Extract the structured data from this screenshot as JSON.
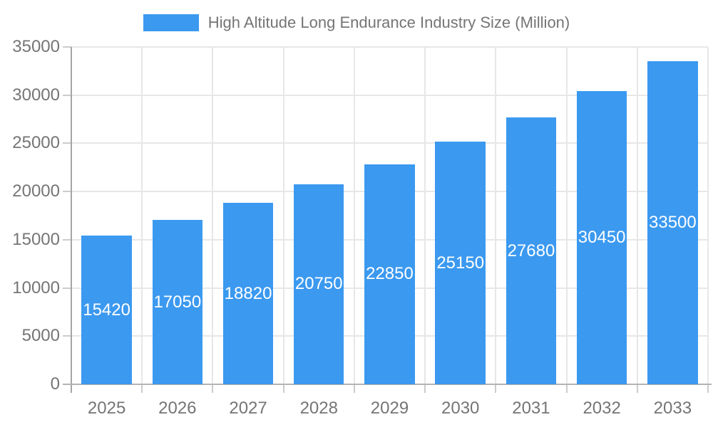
{
  "chart_data": {
    "type": "bar",
    "legend_label": "High Altitude Long Endurance Industry Size (Million)",
    "categories": [
      "2025",
      "2026",
      "2027",
      "2028",
      "2029",
      "2030",
      "2031",
      "2032",
      "2033"
    ],
    "values": [
      15420,
      17050,
      18820,
      20750,
      22850,
      25150,
      27680,
      30450,
      33500
    ],
    "ylim": [
      0,
      35000
    ],
    "ytick_step": 5000,
    "ytick_labels": [
      "0",
      "5000",
      "10000",
      "15000",
      "20000",
      "25000",
      "30000",
      "35000"
    ],
    "grid": "both",
    "legend_position": "top",
    "colors": {
      "bar": "#3b99f0",
      "bar_label_text": "#ffffff",
      "axis_text": "#757575",
      "gridline": "#e7e7e7",
      "axis_line": "#b3b3b3",
      "tick": "#cccccc"
    }
  }
}
